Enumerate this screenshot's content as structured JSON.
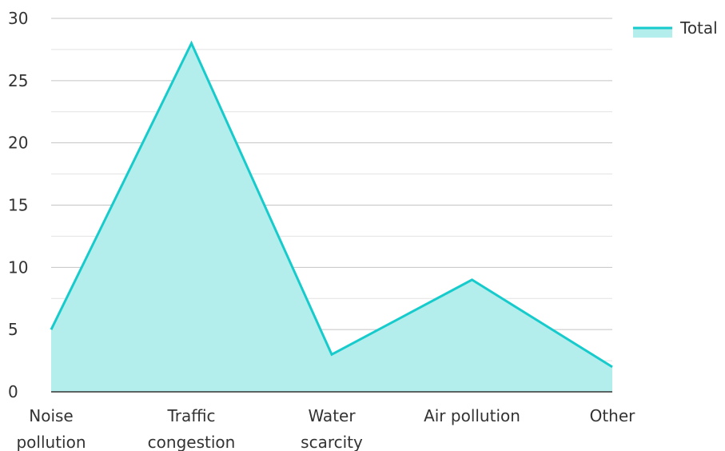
{
  "chart_data": {
    "type": "area",
    "categories": [
      [
        "Noise",
        "pollution"
      ],
      [
        "Traffic",
        "congestion"
      ],
      [
        "Water",
        "scarcity"
      ],
      [
        "Air pollution"
      ],
      [
        "Other"
      ]
    ],
    "series": [
      {
        "name": "Total",
        "values": [
          5,
          28,
          3,
          9,
          2
        ],
        "line_color": "#17cbcc",
        "fill_color": "#b3eeed"
      }
    ],
    "ylim": [
      0,
      30
    ],
    "y_ticks": [
      0,
      5,
      10,
      15,
      20,
      25,
      30
    ],
    "grid": true,
    "legend_position": "top-right",
    "title": "",
    "xlabel": "",
    "ylabel": ""
  },
  "colors": {
    "major_grid": "#c4c4c4",
    "minor_grid": "#e2e2e2",
    "axis": "#333333",
    "text": "#333333"
  }
}
